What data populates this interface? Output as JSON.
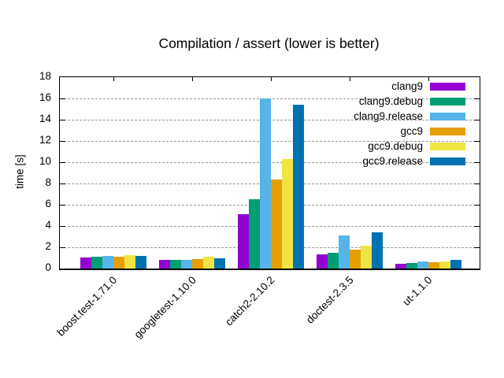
{
  "chart_data": {
    "type": "bar",
    "title": "Compilation / assert (lower is better)",
    "xlabel": "",
    "ylabel": "time [s]",
    "ylim": [
      0,
      18
    ],
    "yticks": [
      0,
      2,
      4,
      6,
      8,
      10,
      12,
      14,
      16,
      18
    ],
    "grid": true,
    "grid_style": "dashed-horizontal",
    "legend_position": "top-right-inside",
    "background_color": "#ffffff",
    "categories": [
      "boost.test-1.71.0",
      "googletest-1.10.0",
      "catch2-2.10.2",
      "doctest-2.3.5",
      "ut-1.1.0"
    ],
    "series": [
      {
        "name": "clang9",
        "color": "#9400d3",
        "values": [
          1.0,
          0.8,
          5.1,
          1.3,
          0.45
        ]
      },
      {
        "name": "clang9.debug",
        "color": "#009e73",
        "values": [
          1.1,
          0.85,
          6.5,
          1.5,
          0.55
        ]
      },
      {
        "name": "clang9.release",
        "color": "#56b4e9",
        "values": [
          1.2,
          0.85,
          16.0,
          3.1,
          0.7
        ]
      },
      {
        "name": "gcc9",
        "color": "#e69f00",
        "values": [
          1.1,
          0.9,
          8.4,
          1.8,
          0.6
        ]
      },
      {
        "name": "gcc9.debug",
        "color": "#f0e442",
        "values": [
          1.25,
          1.1,
          10.3,
          2.15,
          0.65
        ]
      },
      {
        "name": "gcc9.release",
        "color": "#0072b2",
        "values": [
          1.2,
          0.95,
          15.4,
          3.4,
          0.85
        ]
      }
    ]
  }
}
